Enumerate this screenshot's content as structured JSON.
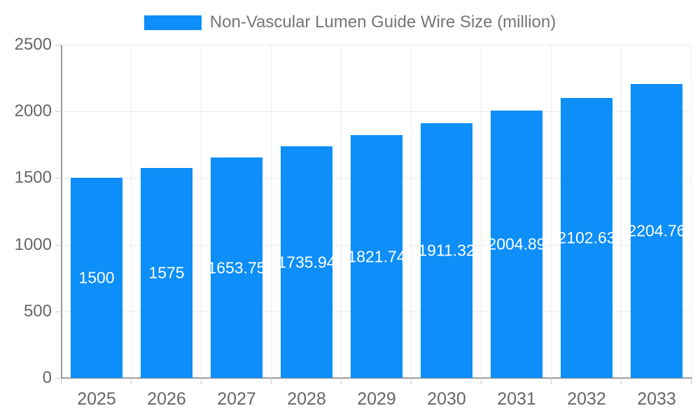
{
  "legend": {
    "label": "Non-Vascular Lumen Guide Wire Size (million)"
  },
  "chart_data": {
    "type": "bar",
    "title": "Non-Vascular Lumen Guide Wire Size (million)",
    "categories": [
      "2025",
      "2026",
      "2027",
      "2028",
      "2029",
      "2030",
      "2031",
      "2032",
      "2033"
    ],
    "values": [
      1500,
      1575,
      1653.75,
      1735.94,
      1821.74,
      1911.32,
      2004.89,
      2102.63,
      2204.76
    ],
    "series_name": "Non-Vascular Lumen Guide Wire Size (million)",
    "xlabel": "",
    "ylabel": "",
    "ylim": [
      0,
      2500
    ],
    "yticks": [
      0,
      500,
      1000,
      1500,
      2000,
      2500
    ],
    "grid": true,
    "legend_position": "top",
    "value_labels_shown": true
  },
  "colors": {
    "bar": "#0d8ef8",
    "grid": "#ebebeb",
    "axis": "#9b9b9b",
    "tick": "#c9c9c9",
    "axis_text": "#666666",
    "legend_text": "#757575",
    "value_text": "#ffffff"
  }
}
